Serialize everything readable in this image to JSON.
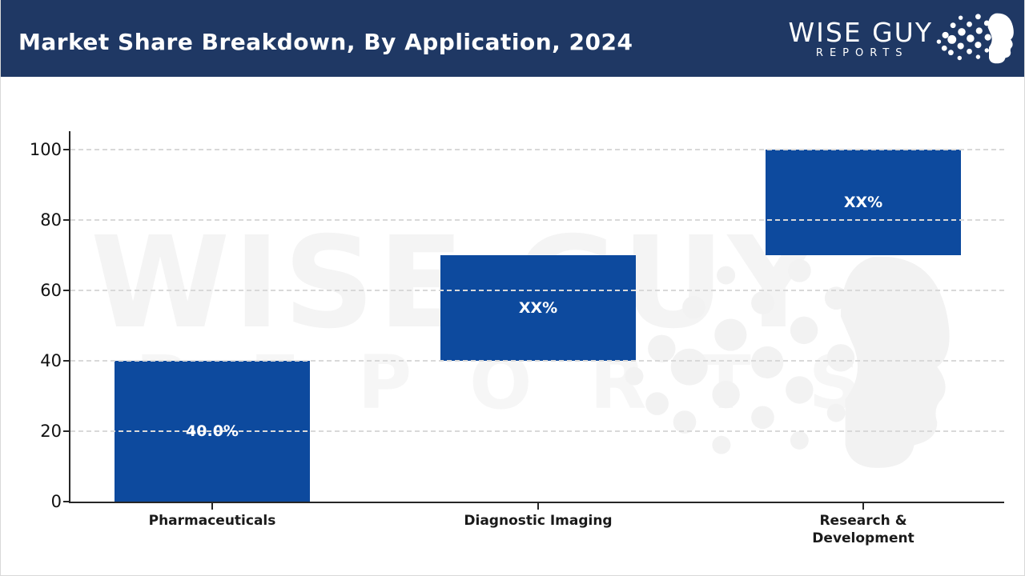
{
  "header": {
    "title": "Market Share Breakdown, By Application, 2024",
    "logo": {
      "wordmark": "WISE GUY",
      "subtext": "REPORTS"
    }
  },
  "watermark": {
    "wordmark": "WISE GUY",
    "subtext": "REPORTS"
  },
  "chart_data": {
    "type": "bar",
    "subtype": "waterfall-segments",
    "title": "Market Share Breakdown, By Application, 2024",
    "categories": [
      "Pharmaceuticals",
      "Diagnostic Imaging",
      "Research &\nDevelopment"
    ],
    "bars": [
      {
        "category": "Pharmaceuticals",
        "start": 0,
        "end": 40,
        "label": "40.0%"
      },
      {
        "category": "Diagnostic Imaging",
        "start": 40,
        "end": 70,
        "label": "XX%"
      },
      {
        "category": "Research & Development",
        "start": 70,
        "end": 100,
        "label": "XX%"
      }
    ],
    "yticks": [
      0,
      20,
      40,
      60,
      80,
      100
    ],
    "ylim": [
      0,
      105
    ],
    "xlabel": "",
    "ylabel": "",
    "grid": "horizontal-dashed",
    "legend": "none",
    "colors": {
      "bar": "#0d4a9e",
      "header_bg": "#1f3864",
      "axis": "#262626",
      "gridline": "#d9d9d9",
      "bar_label_text": "#ffffff",
      "watermark": "#f2f2f2"
    }
  }
}
